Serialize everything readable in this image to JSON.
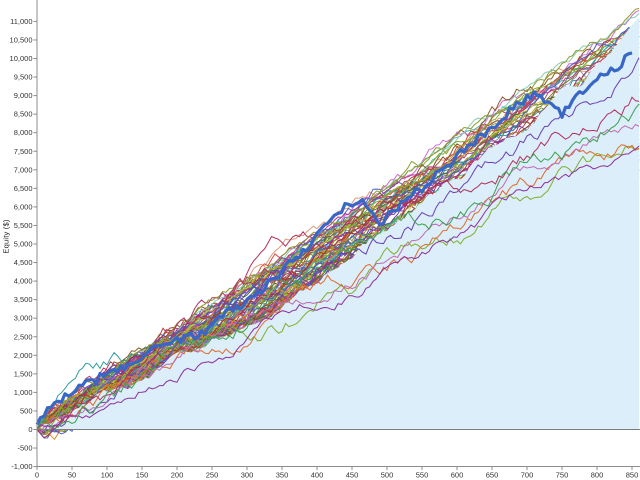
{
  "chart_data": {
    "type": "line",
    "title": "",
    "xlabel": "",
    "ylabel": "Equity ($)",
    "description": "Monte Carlo equity-curve simulation: ~120 randomized equity curves rising from $0 to roughly $7,000-$11,200 over 850 trades, thick blue original equity curve ending near $10,100, light blue shaded area under one curve",
    "x_range": [
      0,
      860
    ],
    "y_range": [
      -1000,
      11350
    ],
    "grid": false,
    "legend": "none",
    "x_ticks": {
      "values": [
        0,
        50,
        100,
        150,
        200,
        250,
        300,
        350,
        400,
        450,
        500,
        550,
        600,
        650,
        700,
        750,
        800,
        850
      ],
      "labels": [
        "0",
        "50",
        "100",
        "150",
        "200",
        "250",
        "300",
        "350",
        "400",
        "450",
        "500",
        "550",
        "600",
        "650",
        "700",
        "750",
        "800",
        "850"
      ]
    },
    "y_ticks": {
      "values": [
        -1000,
        -500,
        0,
        500,
        1000,
        1500,
        2000,
        2500,
        3000,
        3500,
        4000,
        4500,
        5000,
        5500,
        6000,
        6500,
        7000,
        7500,
        8000,
        8500,
        9000,
        9500,
        10000,
        10500,
        11000
      ],
      "labels": [
        "-1,000",
        "-500",
        "0",
        "500",
        "1,000",
        "1,500",
        "2,000",
        "2,500",
        "3,000",
        "3,500",
        "4,000",
        "4,500",
        "5,000",
        "5,500",
        "6,000",
        "6,500",
        "7,000",
        "7,500",
        "8,000",
        "8,500",
        "9,000",
        "9,500",
        "10,000",
        "10,500",
        "11,000"
      ]
    },
    "series": {
      "main_equity": {
        "name": "original-equity-curve",
        "color": "#3867c6",
        "width": 3.2,
        "noise": 115,
        "waypoints": [
          [
            0,
            80
          ],
          [
            15,
            500
          ],
          [
            35,
            800
          ],
          [
            60,
            1150
          ],
          [
            90,
            1400
          ],
          [
            120,
            1600
          ],
          [
            150,
            1950
          ],
          [
            180,
            2300
          ],
          [
            210,
            2480
          ],
          [
            240,
            2620
          ],
          [
            270,
            3150
          ],
          [
            300,
            3400
          ],
          [
            330,
            3900
          ],
          [
            360,
            4450
          ],
          [
            385,
            4900
          ],
          [
            410,
            5500
          ],
          [
            440,
            6050
          ],
          [
            465,
            6150
          ],
          [
            490,
            5600
          ],
          [
            510,
            5900
          ],
          [
            535,
            6300
          ],
          [
            560,
            6650
          ],
          [
            590,
            7200
          ],
          [
            620,
            7700
          ],
          [
            650,
            8100
          ],
          [
            680,
            8700
          ],
          [
            710,
            9050
          ],
          [
            735,
            8750
          ],
          [
            750,
            8500
          ],
          [
            770,
            9000
          ],
          [
            800,
            9450
          ],
          [
            825,
            9700
          ],
          [
            850,
            10150
          ]
        ]
      },
      "simulations": {
        "name": "monte-carlo-simulation-curves",
        "seed": 1337,
        "count": 115,
        "foreground_count": 7,
        "start_value": 0,
        "end_value_range": [
          6800,
          11250
        ],
        "foreground_end_range": [
          6800,
          10000
        ],
        "volatility_range": [
          60,
          190
        ],
        "foreground_volatility_range": [
          110,
          200
        ],
        "palette": [
          "#b5338a",
          "#8e2f9e",
          "#6a3fb5",
          "#4a5fc1",
          "#2f7fc1",
          "#2e9e9b",
          "#3da04f",
          "#7fae2f",
          "#a8a832",
          "#c9c94a",
          "#8f9a2e",
          "#d98f2b",
          "#e06a2b",
          "#d84a3a",
          "#c03a5a",
          "#a83232",
          "#8a5a2b",
          "#c06ab0",
          "#9b8ac4",
          "#58b6a8",
          "#88ccb8",
          "#e09a78",
          "#b03060",
          "#556b2f",
          "#7a7a28",
          "#d26ad2"
        ]
      },
      "band": {
        "name": "shaded-area-under-curve",
        "fill": "#dbeef9",
        "start_value": 50,
        "end_value": 10850,
        "volatility": 85
      }
    },
    "zero_line_color": "#7d7d7d",
    "axis_color": "#8c8c8c",
    "tick_color": "#8c8c8c",
    "tick_label_color": "#333333",
    "background": "#ffffff"
  }
}
